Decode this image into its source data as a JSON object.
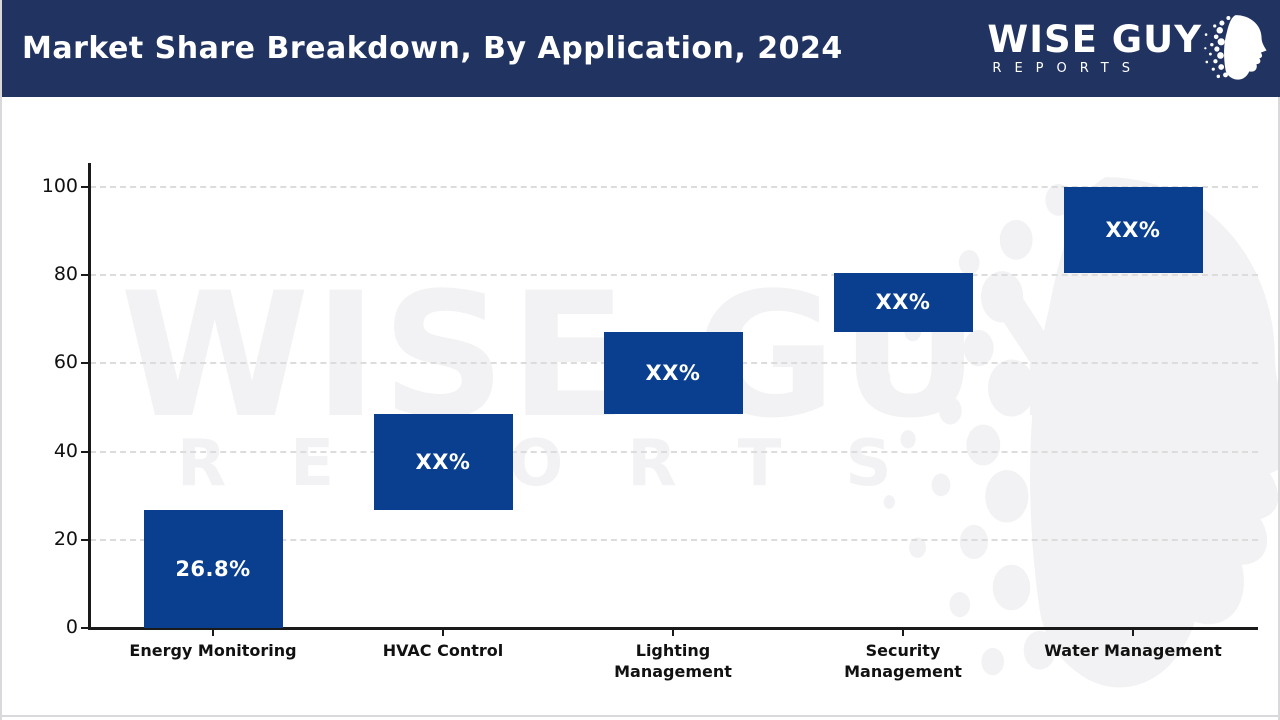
{
  "header": {
    "title": "Market Share Breakdown, By Application, 2024",
    "logo": {
      "line1": "WISE GUY",
      "line2": "REPORTS"
    }
  },
  "watermark": {
    "line1": "WISE GUY",
    "line2": "REPORTS"
  },
  "colors": {
    "header_bg": "#213361",
    "bar": "#0a3f8f",
    "bar_label": "#ffffff",
    "gridline": "#dcdcdc",
    "axis": "#1a1a1a",
    "watermark": "#f2f2f4"
  },
  "chart_data": {
    "type": "bar",
    "subtype": "waterfall",
    "title": "Market Share Breakdown, By Application, 2024",
    "xlabel": "",
    "ylabel": "",
    "ylim": [
      0,
      100
    ],
    "yticks": [
      0,
      20,
      40,
      60,
      80,
      100
    ],
    "grid": "dashed-horizontal",
    "legend": "none",
    "categories": [
      "Energy Monitoring",
      "HVAC Control",
      "Lighting Management",
      "Security Management",
      "Water Management"
    ],
    "xtick_labels": [
      "Energy Monitoring",
      "HVAC Control",
      "Lighting\nManagement",
      "Security\nManagement",
      "Water Management"
    ],
    "segments": [
      {
        "category": "Energy Monitoring",
        "start": 0,
        "end": 26.8,
        "value": 26.8,
        "label": "26.8%"
      },
      {
        "category": "HVAC Control",
        "start": 26.8,
        "end": 48.5,
        "value": 21.7,
        "label": "XX%"
      },
      {
        "category": "Lighting Management",
        "start": 48.5,
        "end": 67.1,
        "value": 18.6,
        "label": "XX%"
      },
      {
        "category": "Security Management",
        "start": 67.1,
        "end": 80.6,
        "value": 13.5,
        "label": "XX%"
      },
      {
        "category": "Water Management",
        "start": 80.6,
        "end": 100,
        "value": 19.4,
        "label": "XX%"
      }
    ]
  }
}
